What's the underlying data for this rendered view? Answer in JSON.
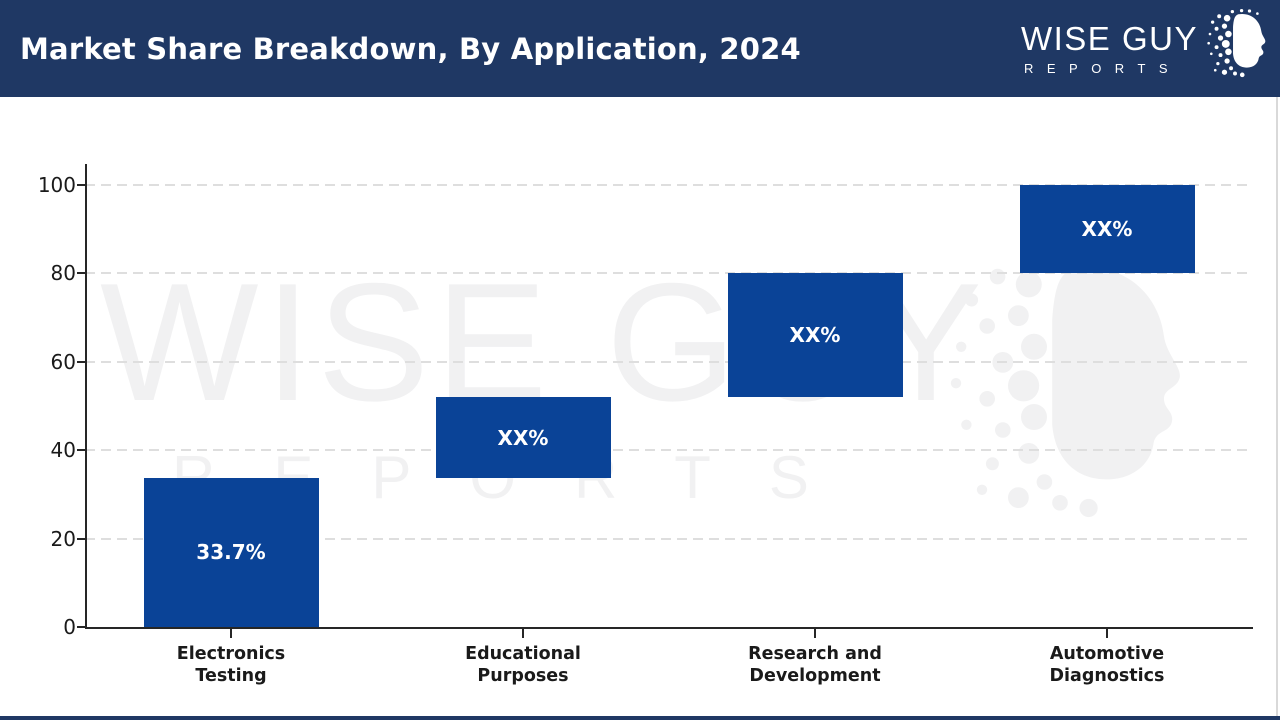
{
  "header": {
    "title": "Market Share Breakdown, By Application, 2024",
    "logo": {
      "brand": "WISE GUY",
      "subbrand": "REPORTS"
    }
  },
  "watermark": {
    "brand": "WISE GUY",
    "subbrand": "REPORTS"
  },
  "colors": {
    "header_bg": "#1f3864",
    "bar": "#0a4397",
    "bar_label": "#ffffff",
    "grid": "#dedede",
    "axis": "#262626",
    "tick_text": "#1a1a1a",
    "watermark": "#f1f1f2"
  },
  "chart_data": {
    "type": "bar",
    "subtype": "waterfall",
    "title": "Market Share Breakdown, By Application, 2024",
    "categories": [
      "Electronics\nTesting",
      "Educational\nPurposes",
      "Research and\nDevelopment",
      "Automotive\nDiagnostics"
    ],
    "segments": [
      {
        "category": "Electronics Testing",
        "start": 0,
        "end": 33.7,
        "label": "33.7%"
      },
      {
        "category": "Educational Purposes",
        "start": 33.7,
        "end": 52,
        "label": "XX%"
      },
      {
        "category": "Research and Development",
        "start": 52,
        "end": 80,
        "label": "XX%"
      },
      {
        "category": "Automotive Diagnostics",
        "start": 80,
        "end": 100,
        "label": "XX%"
      }
    ],
    "xlabel": "",
    "ylabel": "",
    "yticks": [
      0,
      20,
      40,
      60,
      80,
      100
    ],
    "ylim": [
      0,
      104.7
    ],
    "grid": "horizontal-dashed",
    "legend": "none"
  }
}
